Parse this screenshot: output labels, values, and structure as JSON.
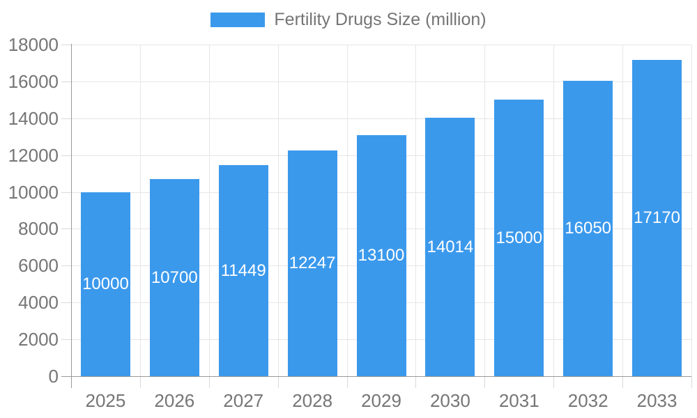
{
  "legend": {
    "label": "Fertility Drugs Size (million)"
  },
  "chart_data": {
    "type": "bar",
    "title": "Fertility Drugs Size (million)",
    "categories": [
      "2025",
      "2026",
      "2027",
      "2028",
      "2029",
      "2030",
      "2031",
      "2032",
      "2033"
    ],
    "series": [
      {
        "name": "Fertility Drugs Size (million)",
        "values": [
          10000,
          10700,
          11449,
          12247,
          13100,
          14014,
          15000,
          16050,
          17170
        ]
      }
    ],
    "bar_value_labels": [
      "10000",
      "10700",
      "11449",
      "12247",
      "13100",
      "14014",
      "15000",
      "16050",
      "17170"
    ],
    "xlabel": "",
    "ylabel": "",
    "ylim": [
      0,
      18000
    ],
    "ytick_step": 2000,
    "ytick_labels": [
      "0",
      "2000",
      "4000",
      "6000",
      "8000",
      "10000",
      "12000",
      "14000",
      "16000",
      "18000"
    ],
    "grid": true,
    "legend_position": "top-center",
    "colors": {
      "bar": "#3B99EC",
      "bar_label": "#FFFFFF",
      "axis_text": "#757575",
      "grid_line": "#E6E6E6",
      "tick_line": "#D9D9D9",
      "axis_line": "#999999",
      "background": "#FFFFFF"
    }
  }
}
